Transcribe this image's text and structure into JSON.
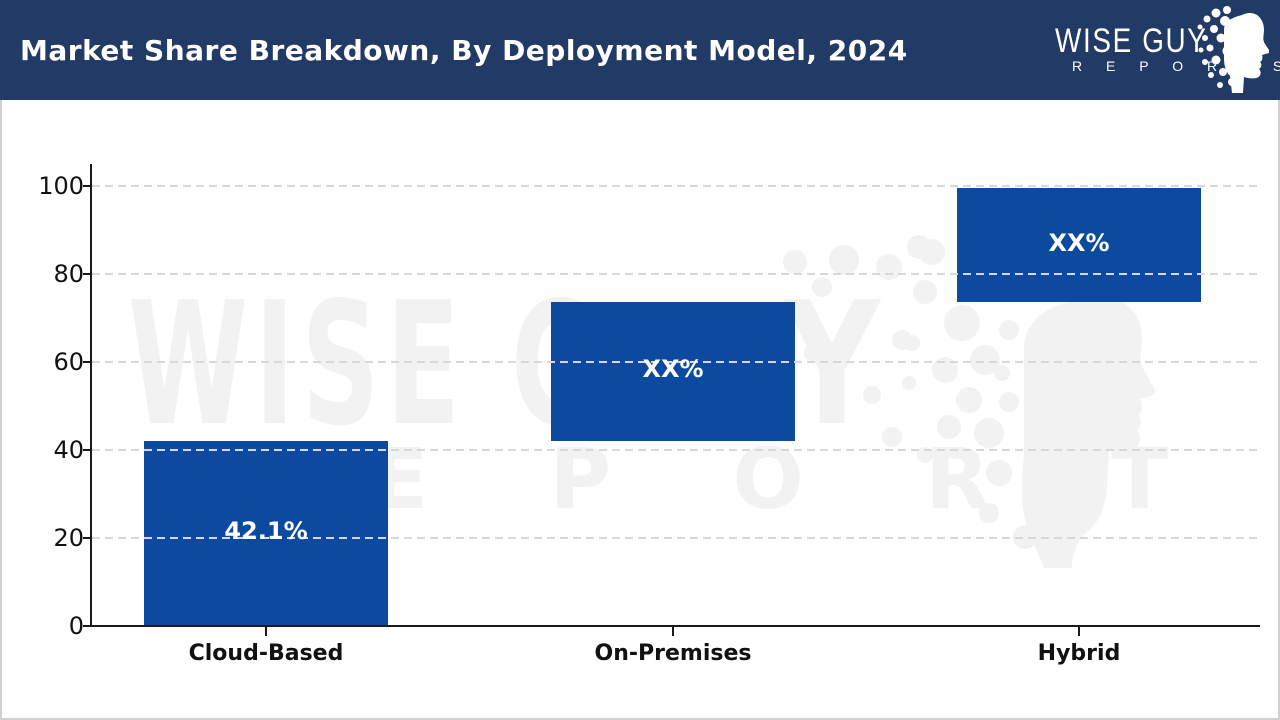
{
  "header": {
    "title": "Market Share Breakdown, By Deployment Model, 2024",
    "logo": {
      "brand_line1": "WISE GUY",
      "brand_line2": "R E P O R T S",
      "face_icon": "dotted-head-profile-icon"
    }
  },
  "watermark": {
    "line1_left": "WISE G",
    "line1_right": "Y",
    "line2": "R E P O R T S"
  },
  "chart_data": {
    "type": "bar",
    "subtype": "waterfall-stacked-breakdown",
    "title": "Market Share Breakdown, By Deployment Model, 2024",
    "categories": [
      "Cloud-Based",
      "On-Premises",
      "Hybrid"
    ],
    "segments": [
      {
        "category": "Cloud-Based",
        "start": 0,
        "end": 42.1,
        "label": "42.1%"
      },
      {
        "category": "On-Premises",
        "start": 42.1,
        "end": 73.6,
        "label": "XX%"
      },
      {
        "category": "Hybrid",
        "start": 73.6,
        "end": 99.5,
        "label": "XX%"
      }
    ],
    "xlabel": "",
    "ylabel": "",
    "yticks": [
      "0",
      "20",
      "40",
      "60",
      "80",
      "100"
    ],
    "ylim": [
      0,
      100
    ],
    "grid": "horizontal-dashed",
    "legend": "none",
    "bar_color": "#0B4A9E",
    "bar_label_color": "#FFFFFF"
  },
  "colors": {
    "header_bg": "#213A66",
    "chart_bg": "#FFFFFF",
    "gridline": "#D8D8D8",
    "axis": "#1A1A1A",
    "watermark": "#F2F2F2",
    "border": "#D0D0D0"
  }
}
